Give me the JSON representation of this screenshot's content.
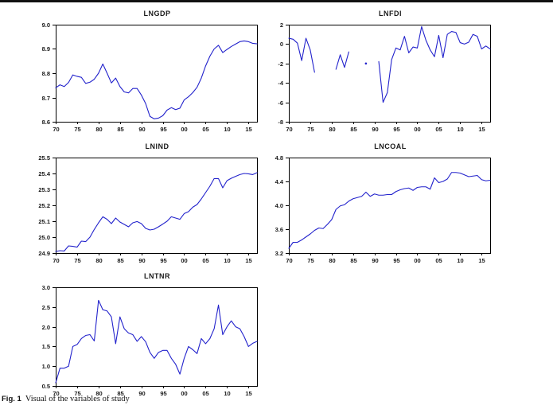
{
  "figure": {
    "caption_label": "Fig. 1",
    "caption_text": "Visual of the variables of study"
  },
  "colors": {
    "series_line": "#2222cc",
    "axis": "#000000",
    "text": "#1a1a1a",
    "page_rule": "#111111"
  },
  "x_axis": {
    "start_year": 1970,
    "end_year": 2017,
    "ticks": [
      {
        "year": 1970,
        "label": "70"
      },
      {
        "year": 1975,
        "label": "75"
      },
      {
        "year": 1980,
        "label": "80"
      },
      {
        "year": 1985,
        "label": "85"
      },
      {
        "year": 1990,
        "label": "90"
      },
      {
        "year": 1995,
        "label": "95"
      },
      {
        "year": 2000,
        "label": "00"
      },
      {
        "year": 2005,
        "label": "05"
      },
      {
        "year": 2010,
        "label": "10"
      },
      {
        "year": 2015,
        "label": "15"
      }
    ]
  },
  "chart_data": [
    {
      "type": "line",
      "title": "LNGDP",
      "ylim": [
        8.6,
        9.0
      ],
      "yticks": [
        8.6,
        8.7,
        8.8,
        8.9,
        9.0
      ],
      "ytick_labels": [
        "8.6",
        "8.7",
        "8.8",
        "8.9",
        "9.0"
      ],
      "grid": false,
      "values": [
        8.74,
        8.752,
        8.745,
        8.762,
        8.793,
        8.787,
        8.783,
        8.758,
        8.763,
        8.775,
        8.8,
        8.838,
        8.8,
        8.76,
        8.78,
        8.745,
        8.723,
        8.719,
        8.737,
        8.737,
        8.71,
        8.675,
        8.622,
        8.612,
        8.615,
        8.625,
        8.648,
        8.658,
        8.65,
        8.656,
        8.69,
        8.703,
        8.72,
        8.742,
        8.78,
        8.83,
        8.87,
        8.9,
        8.915,
        8.885,
        8.898,
        8.91,
        8.92,
        8.93,
        8.933,
        8.93,
        8.923,
        8.921
      ]
    },
    {
      "type": "line",
      "title": "LNFDI",
      "ylim": [
        -8,
        2
      ],
      "yticks": [
        -8,
        -6,
        -4,
        -2,
        0,
        2
      ],
      "ytick_labels": [
        "-8",
        "-6",
        "-4",
        "-2",
        "0",
        "2"
      ],
      "grid": false,
      "values": [
        0.6,
        0.5,
        0.1,
        -1.7,
        0.6,
        -0.6,
        -2.9,
        null,
        null,
        null,
        null,
        -2.6,
        -1.1,
        -2.4,
        -0.8,
        null,
        null,
        null,
        -2.0,
        null,
        null,
        -1.8,
        -6.0,
        -5.0,
        -1.6,
        -0.4,
        -0.6,
        0.8,
        -0.9,
        -0.3,
        -0.4,
        1.8,
        0.4,
        -0.6,
        -1.3,
        0.9,
        -1.4,
        1.0,
        1.3,
        1.2,
        0.15,
        0.0,
        0.2,
        1.0,
        0.8,
        -0.5,
        -0.2,
        -0.5
      ]
    },
    {
      "type": "line",
      "title": "LNIND",
      "ylim": [
        24.9,
        25.5
      ],
      "yticks": [
        24.9,
        25.0,
        25.1,
        25.2,
        25.3,
        25.4,
        25.5
      ],
      "ytick_labels": [
        "24.9",
        "25.0",
        "25.1",
        "25.2",
        "25.3",
        "25.4",
        "25.5"
      ],
      "grid": false,
      "values": [
        24.91,
        24.915,
        24.913,
        24.945,
        24.942,
        24.937,
        24.975,
        24.972,
        25.0,
        25.048,
        25.09,
        25.128,
        25.112,
        25.085,
        25.12,
        25.095,
        25.08,
        25.065,
        25.09,
        25.098,
        25.085,
        25.055,
        25.045,
        25.05,
        25.065,
        25.082,
        25.1,
        25.128,
        25.12,
        25.112,
        25.148,
        25.16,
        25.188,
        25.205,
        25.24,
        25.28,
        25.32,
        25.368,
        25.368,
        25.31,
        25.355,
        25.37,
        25.382,
        25.393,
        25.4,
        25.398,
        25.393,
        25.405
      ]
    },
    {
      "type": "line",
      "title": "LNCOAL",
      "ylim": [
        3.2,
        4.8
      ],
      "yticks": [
        3.2,
        3.6,
        4.0,
        4.4,
        4.8
      ],
      "ytick_labels": [
        "3.2",
        "3.6",
        "4.0",
        "4.4",
        "4.8"
      ],
      "grid": false,
      "values": [
        3.28,
        3.38,
        3.38,
        3.42,
        3.47,
        3.52,
        3.58,
        3.62,
        3.61,
        3.68,
        3.76,
        3.93,
        3.99,
        4.01,
        4.07,
        4.11,
        4.13,
        4.15,
        4.22,
        4.15,
        4.19,
        4.17,
        4.17,
        4.18,
        4.18,
        4.23,
        4.26,
        4.28,
        4.29,
        4.25,
        4.3,
        4.31,
        4.31,
        4.27,
        4.46,
        4.38,
        4.4,
        4.44,
        4.55,
        4.55,
        4.54,
        4.51,
        4.48,
        4.49,
        4.5,
        4.43,
        4.41,
        4.42
      ]
    },
    {
      "type": "line",
      "title": "LNTNR",
      "ylim": [
        0.5,
        3.0
      ],
      "yticks": [
        0.5,
        1.0,
        1.5,
        2.0,
        2.5,
        3.0
      ],
      "ytick_labels": [
        "0.5",
        "1.0",
        "1.5",
        "2.0",
        "2.5",
        "3.0"
      ],
      "grid": false,
      "values": [
        0.58,
        0.95,
        0.95,
        1.0,
        1.5,
        1.55,
        1.7,
        1.78,
        1.8,
        1.64,
        2.67,
        2.43,
        2.4,
        2.25,
        1.57,
        2.25,
        1.95,
        1.84,
        1.8,
        1.63,
        1.75,
        1.62,
        1.35,
        1.2,
        1.35,
        1.4,
        1.4,
        1.2,
        1.05,
        0.8,
        1.2,
        1.5,
        1.42,
        1.32,
        1.7,
        1.57,
        1.7,
        1.95,
        2.55,
        1.8,
        2.0,
        2.15,
        2.0,
        1.95,
        1.75,
        1.5,
        1.58,
        1.63
      ]
    }
  ]
}
